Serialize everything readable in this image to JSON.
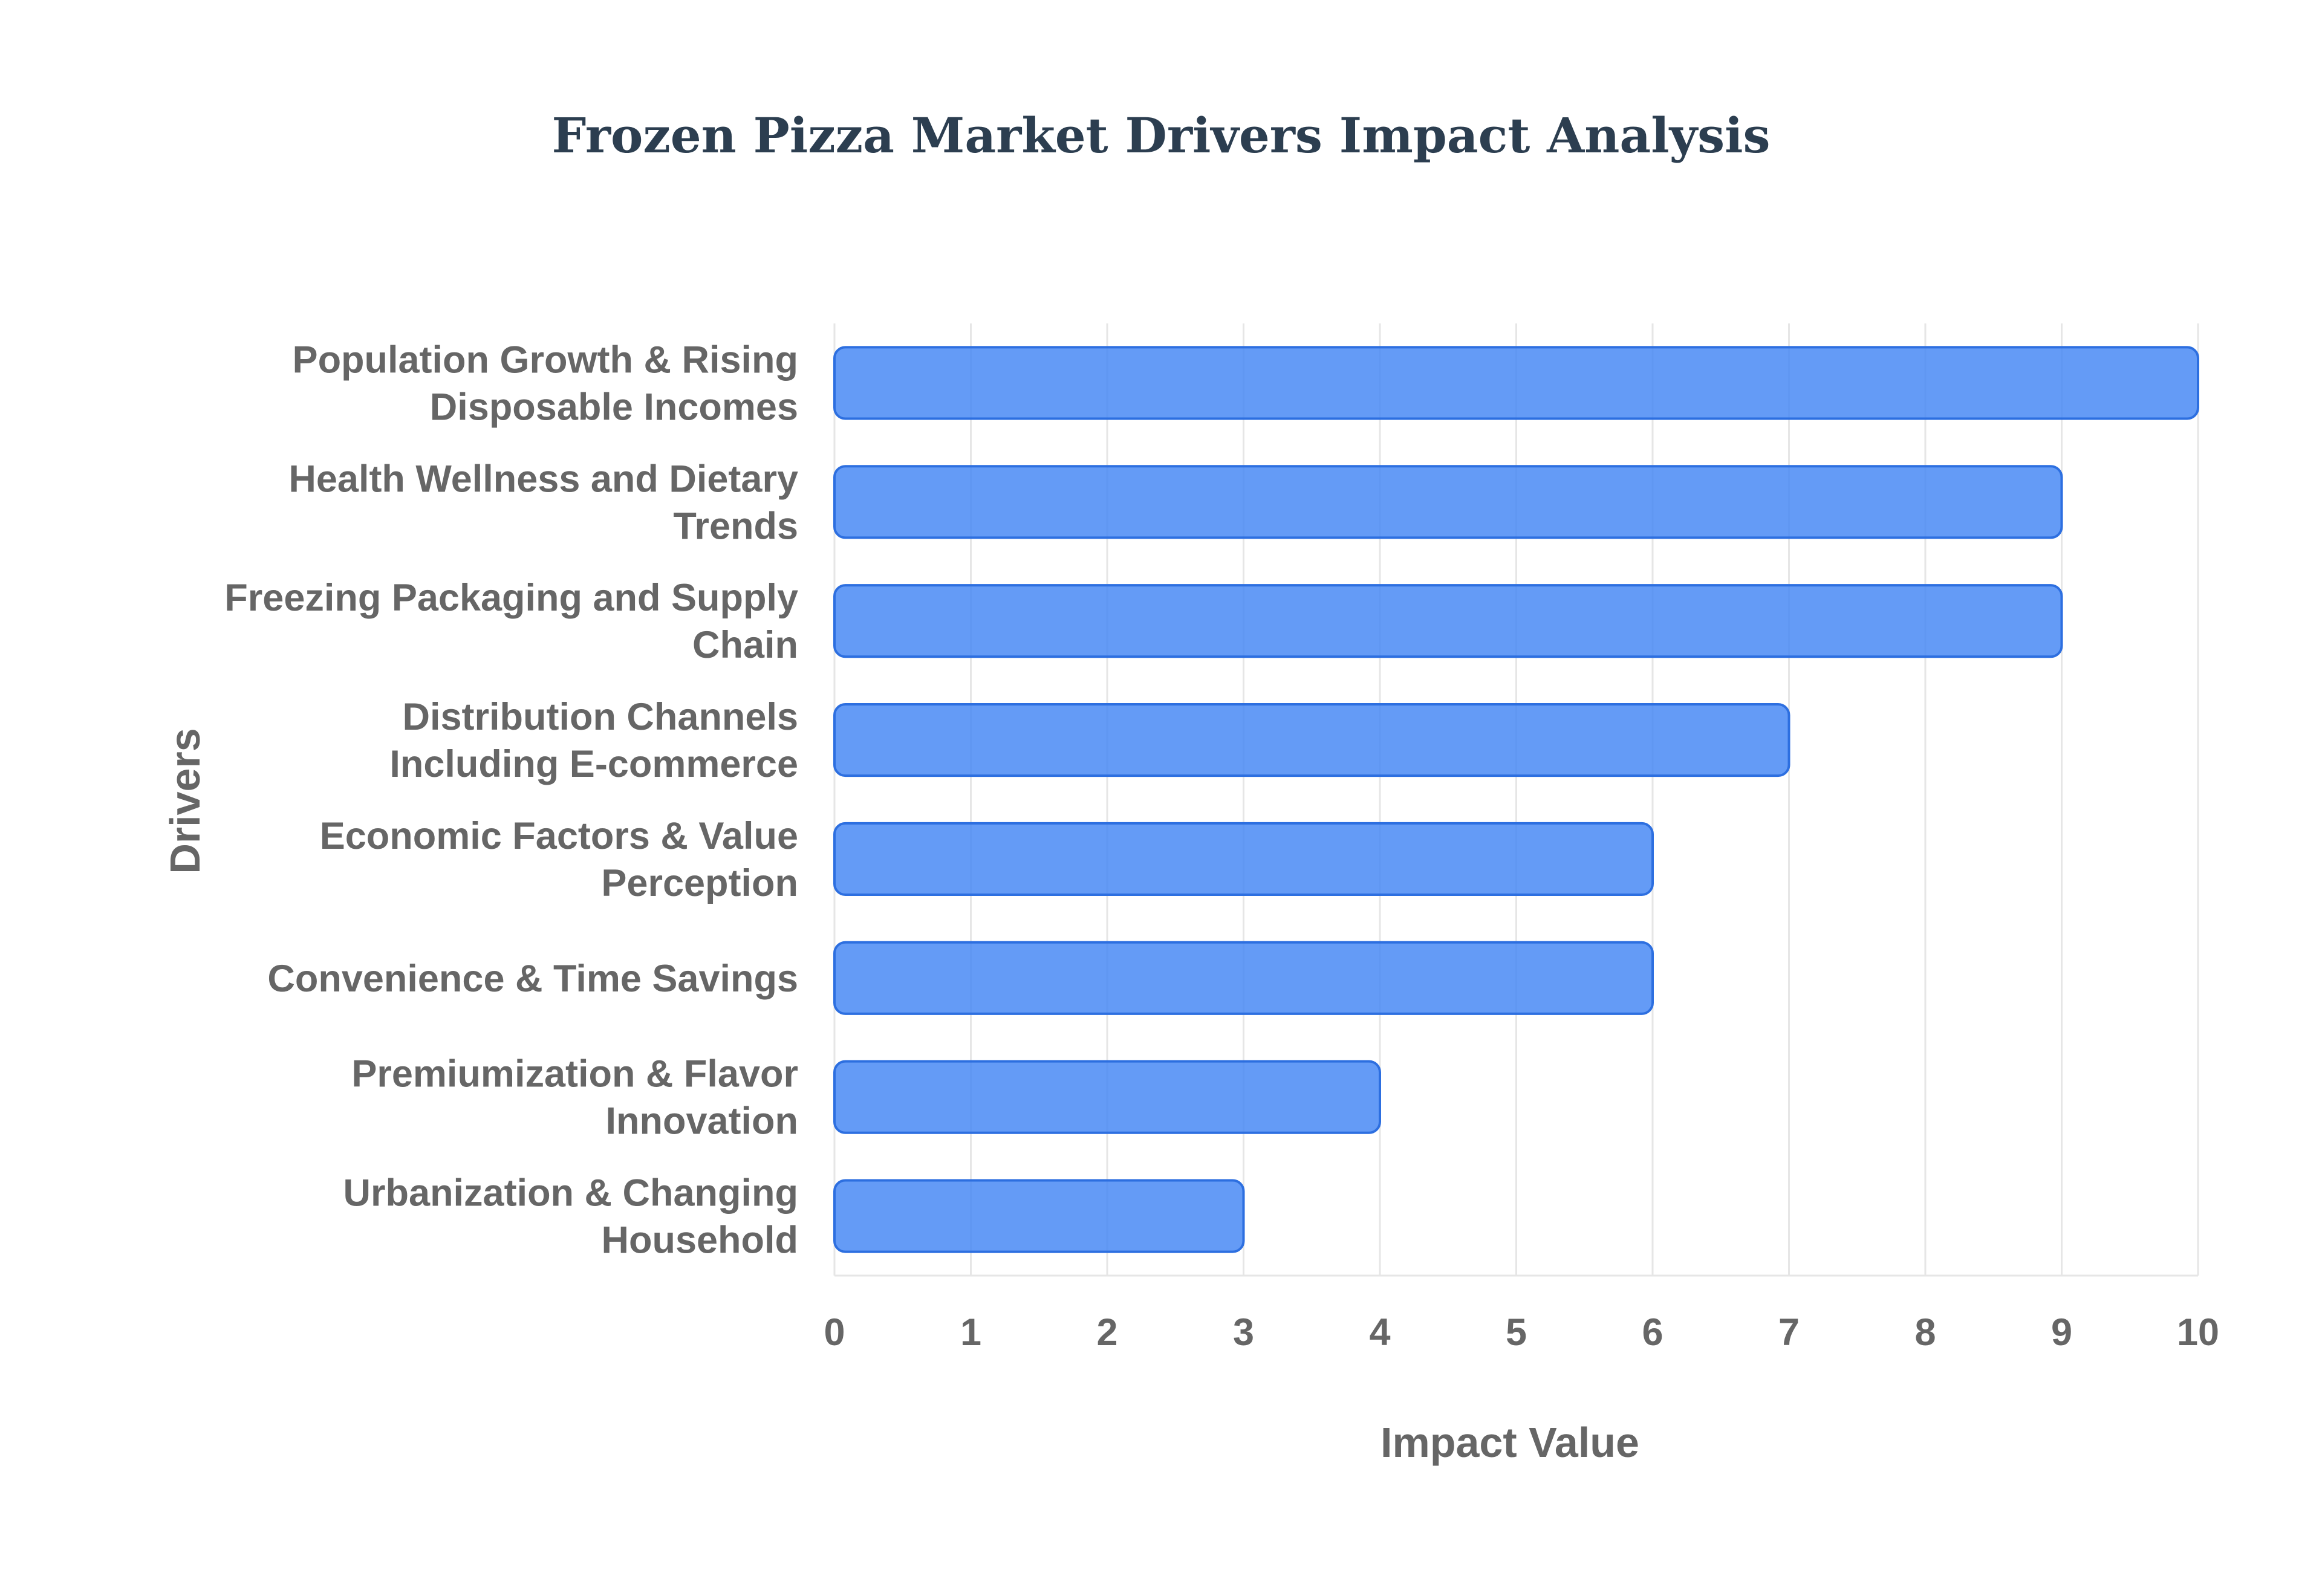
{
  "chart_data": {
    "type": "bar",
    "orientation": "horizontal",
    "title": "Frozen Pizza Market Drivers Impact Analysis",
    "xlabel": "Impact Value",
    "ylabel": "Drivers",
    "xlim": [
      0,
      10
    ],
    "x_ticks": [
      "0",
      "1",
      "2",
      "3",
      "4",
      "5",
      "6",
      "7",
      "8",
      "9",
      "10"
    ],
    "grid": true,
    "bar_color": "#4285f4",
    "categories": [
      [
        "Population Growth & Rising",
        "Disposable Incomes"
      ],
      [
        "Health Wellness and Dietary",
        "Trends"
      ],
      [
        "Freezing Packaging and Supply",
        "Chain"
      ],
      [
        "Distribution Channels",
        "Including E-commerce"
      ],
      [
        "Economic Factors & Value",
        "Perception"
      ],
      [
        "Convenience & Time Savings"
      ],
      [
        "Premiumization & Flavor",
        "Innovation"
      ],
      [
        "Urbanization & Changing",
        "Household"
      ]
    ],
    "values": [
      10,
      9,
      9,
      7,
      6,
      6,
      4,
      3
    ]
  }
}
